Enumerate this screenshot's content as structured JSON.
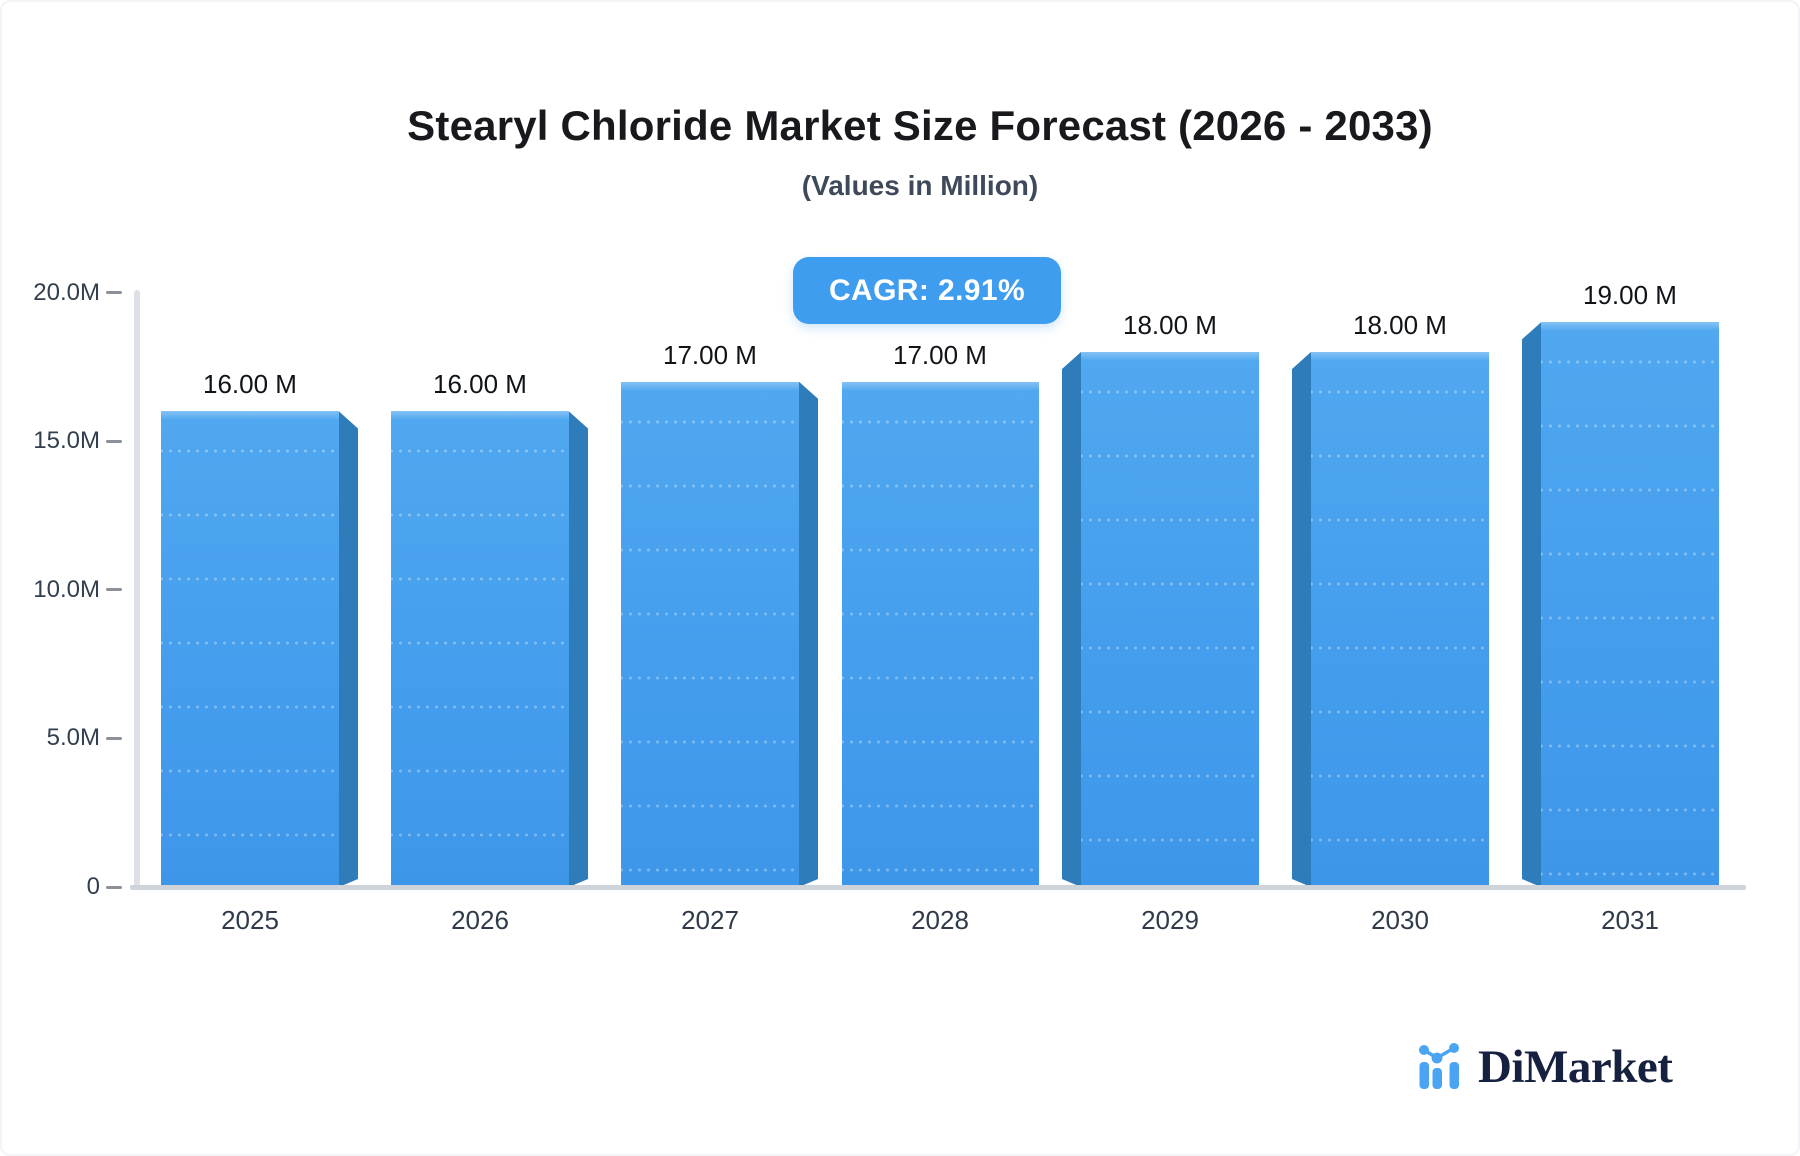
{
  "header": {
    "title": "Stearyl Chloride Market Size Forecast (2026 - 2033)",
    "subtitle": "(Values in Million)"
  },
  "badge": {
    "label": "CAGR: 2.91%",
    "bg_color": "#3f9def",
    "text_color": "#ffffff"
  },
  "chart_data": {
    "type": "bar",
    "title": "Stearyl Chloride Market Size Forecast (2026 - 2033)",
    "subtitle": "(Values in Million)",
    "unit": "Million",
    "cagr_percent": 2.91,
    "categories": [
      "2025",
      "2026",
      "2027",
      "2028",
      "2029",
      "2030",
      "2031"
    ],
    "values": [
      16,
      16,
      17,
      17,
      18,
      18,
      19
    ],
    "value_labels": [
      "16.00 M",
      "16.00 M",
      "17.00 M",
      "17.00 M",
      "18.00 M",
      "18.00 M",
      "19.00 M"
    ],
    "y_ticks": [
      {
        "value": 20,
        "label": "20.0M"
      },
      {
        "value": 15,
        "label": "15.0M"
      },
      {
        "value": 10,
        "label": "10.0M"
      },
      {
        "value": 5,
        "label": "5.0M"
      },
      {
        "value": 0,
        "label": "0"
      }
    ],
    "ylim": [
      0,
      20
    ],
    "xlabel": "",
    "ylabel": "",
    "grid": false,
    "legend": "none",
    "bar_color": "#47a0ee",
    "bar_side_color": "#2e7cba"
  },
  "logo": {
    "name": "DiMarket",
    "icon": "bar-chart-logo-icon",
    "text_color": "#16213f",
    "accent_color": "#4aa4f1"
  }
}
